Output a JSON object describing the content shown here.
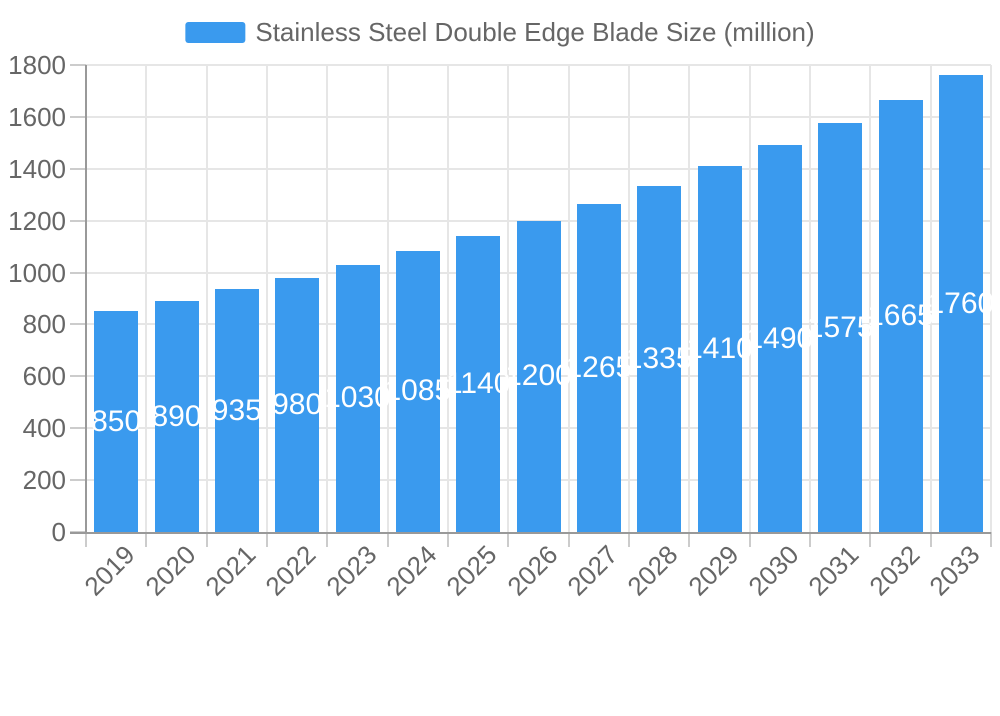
{
  "chart_data": {
    "type": "bar",
    "title": "",
    "legend": {
      "label": "Stainless Steel Double Edge Blade Size (million)"
    },
    "legend_position": "top-center",
    "categories": [
      "2019",
      "2020",
      "2021",
      "2022",
      "2023",
      "2024",
      "2025",
      "2026",
      "2027",
      "2028",
      "2029",
      "2030",
      "2031",
      "2032",
      "2033"
    ],
    "series": [
      {
        "name": "Stainless Steel Double Edge Blade Size (million)",
        "values": [
          850,
          890,
          935,
          980,
          1030,
          1085,
          1140,
          1200,
          1265,
          1335,
          1410,
          1490,
          1575,
          1665,
          1760
        ]
      }
    ],
    "bar_value_labels": [
      "850",
      "890",
      "935",
      "980",
      "1030",
      "1085",
      "1140",
      "1200",
      "1265",
      "1335",
      "1410",
      "1490",
      "1575",
      "1665",
      "1760"
    ],
    "yticks": [
      0,
      200,
      400,
      600,
      800,
      1000,
      1200,
      1400,
      1600,
      1800
    ],
    "ylim": [
      0,
      1800
    ],
    "xlabel": "",
    "ylabel": "",
    "grid": true,
    "x_label_rotation_deg": 45,
    "colors": {
      "bar": "#3A9AEE",
      "bar_label": "#FFFFFF",
      "axis_text": "#666666",
      "grid_line": "#E6E6E6",
      "axis_line": "#999999",
      "tick_line": "#CCCCCC",
      "background": "#FFFFFF"
    }
  }
}
